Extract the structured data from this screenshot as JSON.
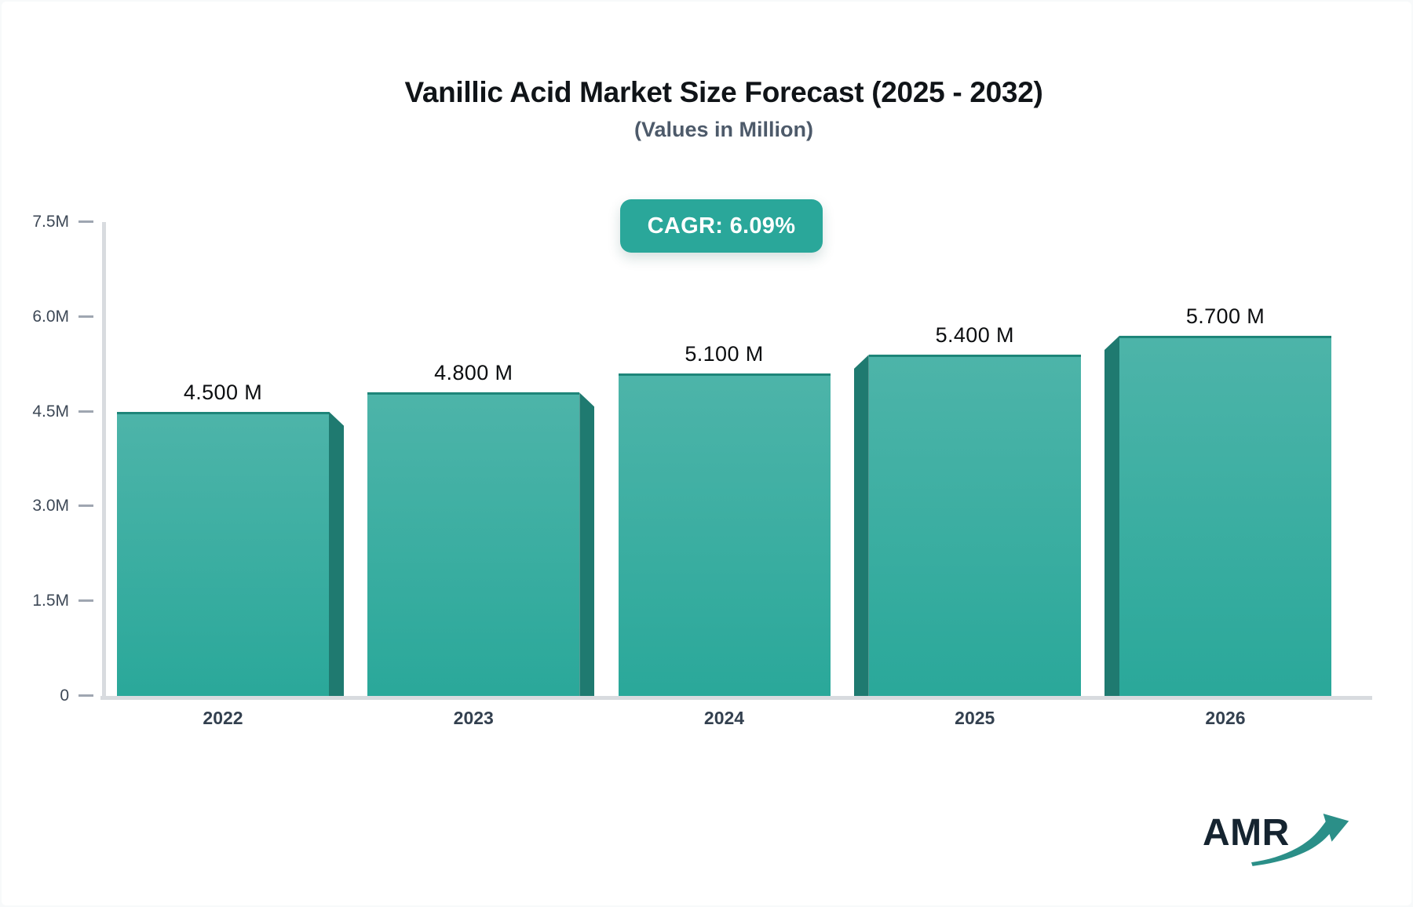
{
  "chart_data": {
    "type": "bar",
    "title": "Vanillic Acid Market Size Forecast (2025 - 2032)",
    "subtitle": "(Values in Million)",
    "cagr_label": "CAGR: 6.09%",
    "categories": [
      "2022",
      "2023",
      "2024",
      "2025",
      "2026"
    ],
    "values": [
      4.5,
      4.8,
      5.1,
      5.4,
      5.7
    ],
    "value_labels": [
      "4.500 M",
      "4.800 M",
      "5.100 M",
      "5.400 M",
      "5.700 M"
    ],
    "unit": "Million",
    "ylim": [
      0,
      7.5
    ],
    "yticks": [
      {
        "value": 0,
        "label": "0"
      },
      {
        "value": 1.5,
        "label": "1.5M"
      },
      {
        "value": 3,
        "label": "3.0M"
      },
      {
        "value": 4.5,
        "label": "4.5M"
      },
      {
        "value": 6,
        "label": "6.0M"
      },
      {
        "value": 7.5,
        "label": "7.5M"
      }
    ],
    "xlabel": "",
    "ylabel": "",
    "grid": false,
    "legend": false
  },
  "logo": {
    "text": "AMR",
    "arrow_icon": "trend-up-arrow"
  },
  "colors": {
    "bar_top": "#4db4a9",
    "bar_bottom": "#2aa89a",
    "bar_side": "#1f7a70",
    "bar_edge": "#1e8579",
    "badge_bg": "#2aa79a",
    "badge_text": "#ffffff",
    "axis_line": "#d8dbdf",
    "tick": "#9fa6b1",
    "y_label": "#3d4856",
    "x_label": "#33404f",
    "title": "#101418",
    "subtitle": "#4d5a6a",
    "value_label": "#0c0e10",
    "logo_text": "#152430",
    "logo_arrow": "#2b8f88",
    "card_bg": "#ffffff",
    "page_bg": "#f7f9fa"
  }
}
